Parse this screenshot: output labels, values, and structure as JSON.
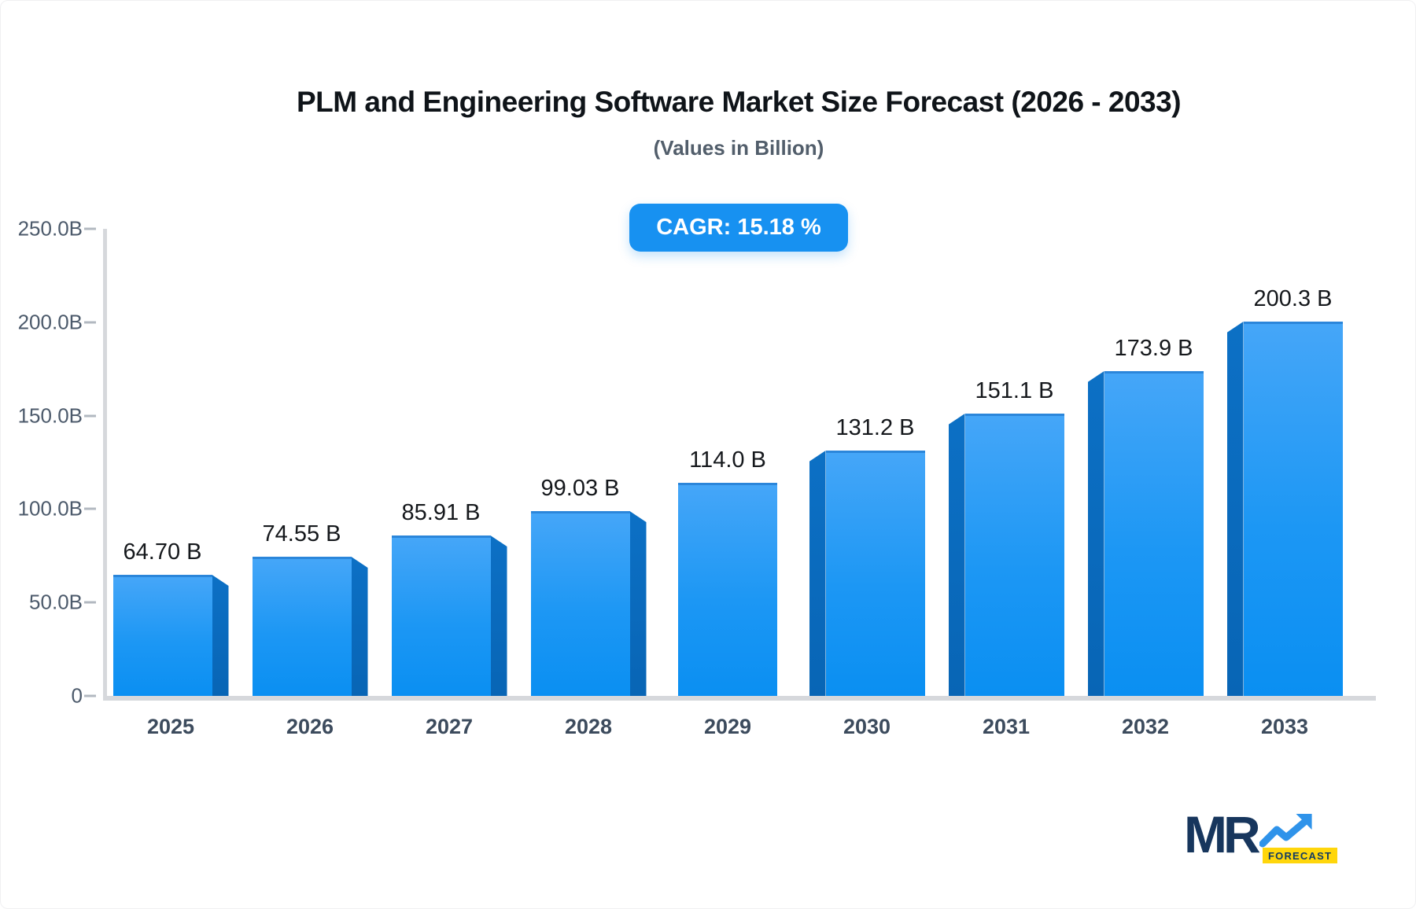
{
  "header": {
    "title": "PLM and Engineering Software Market Size Forecast (2026 - 2033)",
    "subtitle": "(Values in Billion)",
    "cagr_label": "CAGR: 15.18 %"
  },
  "chart_data": {
    "type": "bar",
    "title": "PLM and Engineering Software Market Size Forecast (2026 - 2033)",
    "subtitle": "(Values in Billion)",
    "unit": "Billion USD",
    "cagr_percent": 15.18,
    "categories": [
      "2025",
      "2026",
      "2027",
      "2028",
      "2029",
      "2030",
      "2031",
      "2032",
      "2033"
    ],
    "values": [
      64.7,
      74.55,
      85.91,
      99.03,
      114.0,
      131.2,
      151.1,
      173.9,
      200.3
    ],
    "bar_labels": [
      "64.70 B",
      "74.55 B",
      "85.91 B",
      "99.03 B",
      "114.0 B",
      "131.2 B",
      "151.1 B",
      "173.9 B",
      "200.3 B"
    ],
    "xlabel": "",
    "ylabel": "",
    "ylim": [
      0,
      250
    ],
    "y_tick_values": [
      0,
      50,
      100,
      150,
      200,
      250
    ],
    "y_tick_labels": [
      "0",
      "50.0B",
      "100.0B",
      "150.0B",
      "200.0B",
      "250.0B"
    ],
    "grid": false,
    "legend": "none",
    "colors": {
      "bar_face_top": "#45a6f8",
      "bar_face_bottom": "#0a8ff2",
      "bar_side": "#0a6abc",
      "axis": "#d6d8dc",
      "value_label": "#15181c",
      "tick_label": "#4c5a6b",
      "badge_background": "#1791f1",
      "badge_text": "#ffffff"
    }
  },
  "logo": {
    "text": "MR",
    "sub_label": "FORECAST",
    "navy": "#17365d",
    "yellow": "#ffd60b",
    "arrow_blue": "#2f93ea"
  }
}
